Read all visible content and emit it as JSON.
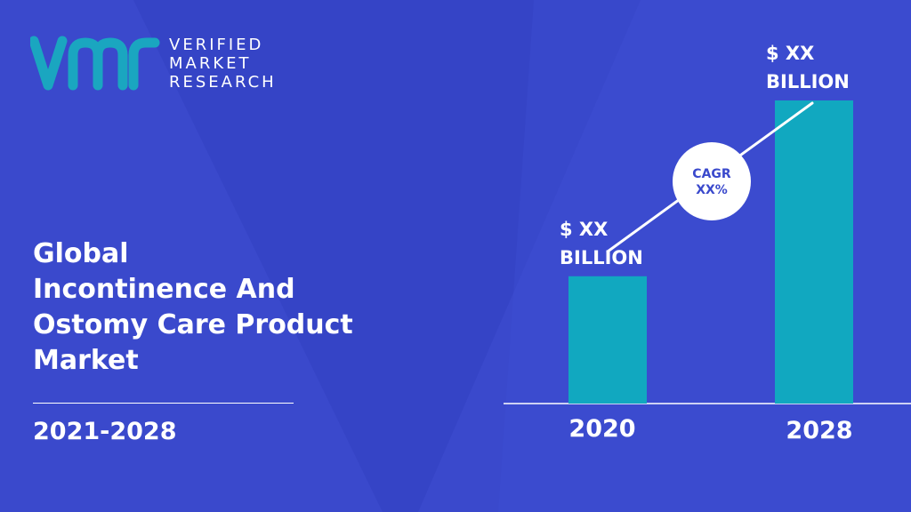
{
  "brand": {
    "line1": "VERIFIED",
    "line2": "MARKET",
    "line3": "RESEARCH",
    "colors": {
      "logo_teal": "#1aa6c0",
      "background": "#3a49cc",
      "bar": "#11a8c0"
    }
  },
  "title_lines": [
    "Global",
    "Incontinence And",
    "Ostomy Care Product",
    "Market"
  ],
  "period": "2021-2028",
  "chart_data": {
    "type": "bar",
    "categories": [
      "2020",
      "2028"
    ],
    "values": [
      42,
      100
    ],
    "value_labels": [
      [
        "$ XX",
        "BILLION"
      ],
      [
        "$ XX",
        "BILLION"
      ]
    ],
    "annotation": {
      "line1": "CAGR",
      "line2": "XX%"
    },
    "ylim": [
      0,
      100
    ],
    "grid": false,
    "legend": "none"
  }
}
